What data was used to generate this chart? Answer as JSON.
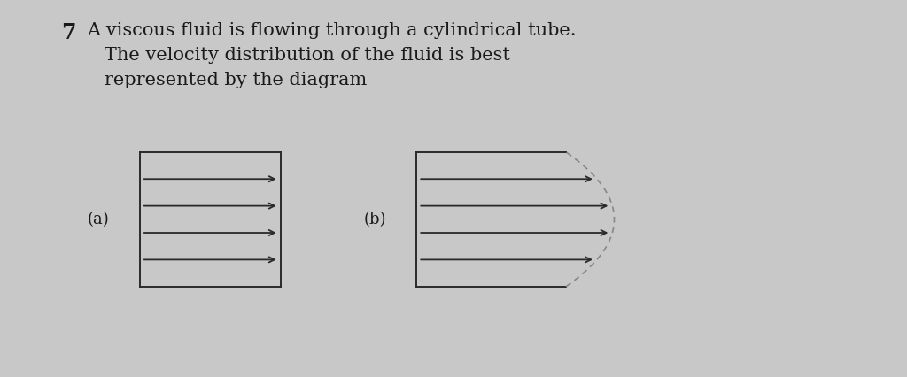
{
  "background_color": "#c8c8c8",
  "text_color": "#1a1a1a",
  "title_bold": "7",
  "title_text": "A viscous fluid is flowing through a cylindrical tube.\n   The velocity distribution of the fluid is best\n   represented by the diagram",
  "label_a": "(a)",
  "label_b": "(b)",
  "line_color": "#2a2a2a",
  "arrow_color": "#2a2a2a",
  "parab_color": "#888888",
  "num_arrows": 4,
  "fig_w": 10.24,
  "fig_h": 4.26,
  "dpi": 100
}
